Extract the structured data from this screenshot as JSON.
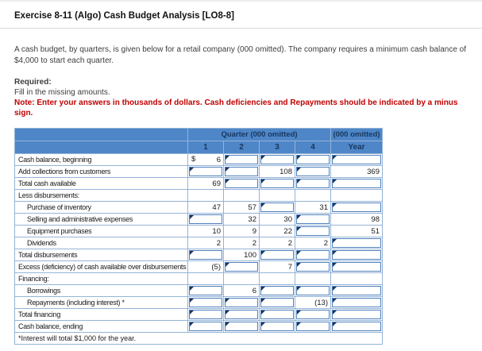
{
  "page": {
    "title": "Exercise 8-11 (Algo) Cash Budget Analysis [LO8-8]",
    "intro": "A cash budget, by quarters, is given below for a retail company (000 omitted). The company requires a minimum cash balance of $4,000 to start each quarter.",
    "required_label": "Required:",
    "required_text": "Fill in the missing amounts.",
    "note_label": "Note:",
    "note_text": "Enter your answers in thousands of dollars. Cash deficiencies and Repayments should be indicated by a minus sign."
  },
  "colors": {
    "header_bg": "#4e86c8",
    "header_text": "#17375e",
    "table_border": "#95b3d7",
    "input_border": "#4f81bd",
    "input_marker": "#17375e",
    "note_red": "#c00000"
  },
  "table": {
    "col_headers": {
      "quarter_group": "Quarter (000 omitted)",
      "year_group": "(000 omitted)",
      "quarters": [
        "1",
        "2",
        "3",
        "4"
      ],
      "year": "Year"
    },
    "rows": [
      {
        "label": "Cash balance, beginning",
        "indent": 0,
        "cells": [
          {
            "kind": "static",
            "prefix": "$",
            "value": "6"
          },
          {
            "kind": "input"
          },
          {
            "kind": "input"
          },
          {
            "kind": "input"
          },
          {
            "kind": "input"
          }
        ]
      },
      {
        "label": "Add collections from customers",
        "indent": 0,
        "cells": [
          {
            "kind": "input"
          },
          {
            "kind": "input"
          },
          {
            "kind": "static",
            "value": "108"
          },
          {
            "kind": "input"
          },
          {
            "kind": "static",
            "value": "369"
          }
        ]
      },
      {
        "label": "Total cash available",
        "indent": 0,
        "cells": [
          {
            "kind": "static",
            "value": "69"
          },
          {
            "kind": "input"
          },
          {
            "kind": "input"
          },
          {
            "kind": "input"
          },
          {
            "kind": "input"
          }
        ]
      },
      {
        "label": "Less disbursements:",
        "indent": 0,
        "cells": [
          {
            "kind": "blank"
          },
          {
            "kind": "blank"
          },
          {
            "kind": "blank"
          },
          {
            "kind": "blank"
          },
          {
            "kind": "blank"
          }
        ]
      },
      {
        "label": "Purchase of inventory",
        "indent": 1,
        "cells": [
          {
            "kind": "static",
            "value": "47"
          },
          {
            "kind": "static",
            "value": "57"
          },
          {
            "kind": "input"
          },
          {
            "kind": "static",
            "value": "31"
          },
          {
            "kind": "input"
          }
        ]
      },
      {
        "label": "Selling and administrative expenses",
        "indent": 1,
        "cells": [
          {
            "kind": "input"
          },
          {
            "kind": "static",
            "value": "32"
          },
          {
            "kind": "static",
            "value": "30"
          },
          {
            "kind": "input"
          },
          {
            "kind": "static",
            "value": "98"
          }
        ]
      },
      {
        "label": "Equipment purchases",
        "indent": 1,
        "cells": [
          {
            "kind": "static",
            "value": "10"
          },
          {
            "kind": "static",
            "value": "9"
          },
          {
            "kind": "static",
            "value": "22"
          },
          {
            "kind": "input"
          },
          {
            "kind": "static",
            "value": "51"
          }
        ]
      },
      {
        "label": "Dividends",
        "indent": 1,
        "cells": [
          {
            "kind": "static",
            "value": "2"
          },
          {
            "kind": "static",
            "value": "2"
          },
          {
            "kind": "static",
            "value": "2"
          },
          {
            "kind": "static",
            "value": "2"
          },
          {
            "kind": "input"
          }
        ]
      },
      {
        "label": "Total disbursements",
        "indent": 0,
        "cells": [
          {
            "kind": "input"
          },
          {
            "kind": "static",
            "value": "100"
          },
          {
            "kind": "input"
          },
          {
            "kind": "input"
          },
          {
            "kind": "input"
          }
        ]
      },
      {
        "label": "Excess (deficiency) of cash available over disbursements",
        "indent": 0,
        "cells": [
          {
            "kind": "static",
            "value": "(5)"
          },
          {
            "kind": "input"
          },
          {
            "kind": "static",
            "value": "7"
          },
          {
            "kind": "input"
          },
          {
            "kind": "input"
          }
        ]
      },
      {
        "label": "Financing:",
        "indent": 0,
        "cells": [
          {
            "kind": "blank"
          },
          {
            "kind": "blank"
          },
          {
            "kind": "blank"
          },
          {
            "kind": "blank"
          },
          {
            "kind": "blank"
          }
        ]
      },
      {
        "label": "Borrowings",
        "indent": 1,
        "cells": [
          {
            "kind": "input"
          },
          {
            "kind": "static",
            "value": "6"
          },
          {
            "kind": "input"
          },
          {
            "kind": "input"
          },
          {
            "kind": "input"
          }
        ]
      },
      {
        "label": "Repayments (including interest) *",
        "indent": 1,
        "cells": [
          {
            "kind": "input"
          },
          {
            "kind": "input"
          },
          {
            "kind": "input"
          },
          {
            "kind": "static",
            "value": "(13)"
          },
          {
            "kind": "input"
          }
        ]
      },
      {
        "label": "Total financing",
        "indent": 0,
        "cells": [
          {
            "kind": "input"
          },
          {
            "kind": "input"
          },
          {
            "kind": "input"
          },
          {
            "kind": "input"
          },
          {
            "kind": "input"
          }
        ]
      },
      {
        "label": "Cash balance, ending",
        "indent": 0,
        "cells": [
          {
            "kind": "input"
          },
          {
            "kind": "input"
          },
          {
            "kind": "input"
          },
          {
            "kind": "input"
          },
          {
            "kind": "input"
          }
        ]
      }
    ],
    "footnote": "*Interest will total $1,000 for the year."
  }
}
